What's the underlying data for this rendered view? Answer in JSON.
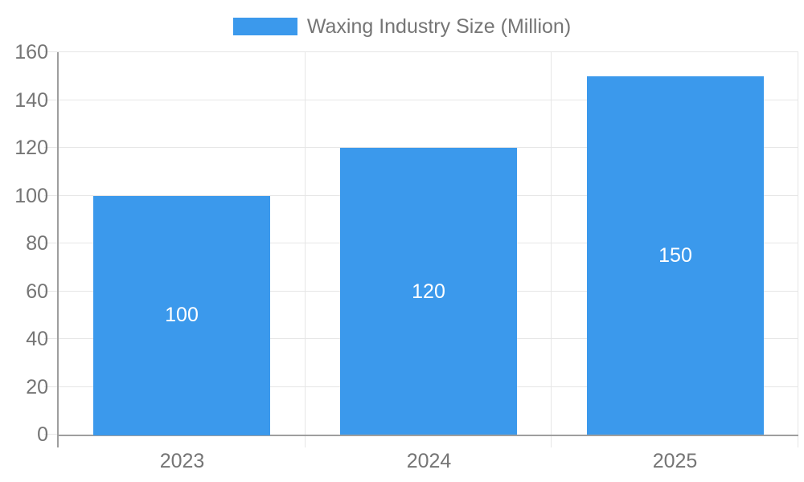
{
  "colors": {
    "bar": "#3B99EC",
    "axis": "#9E9E9E",
    "grid": "#E6E6E6",
    "label": "#757575",
    "value_label": "#FFFFFF",
    "background": "#FFFFFF"
  },
  "legend": {
    "label": "Waxing Industry Size (Million)"
  },
  "chart_data": {
    "type": "bar",
    "categories": [
      "2023",
      "2024",
      "2025"
    ],
    "values": [
      100,
      120,
      150
    ],
    "title": "",
    "xlabel": "",
    "ylabel": "",
    "legend_label": "Waxing Industry Size (Million)",
    "legend_position": "top",
    "ylim": [
      0,
      160
    ],
    "ytick_step": 20,
    "yticks": [
      0,
      20,
      40,
      60,
      80,
      100,
      120,
      140,
      160
    ],
    "grid": true,
    "value_labels": "inside-center"
  }
}
